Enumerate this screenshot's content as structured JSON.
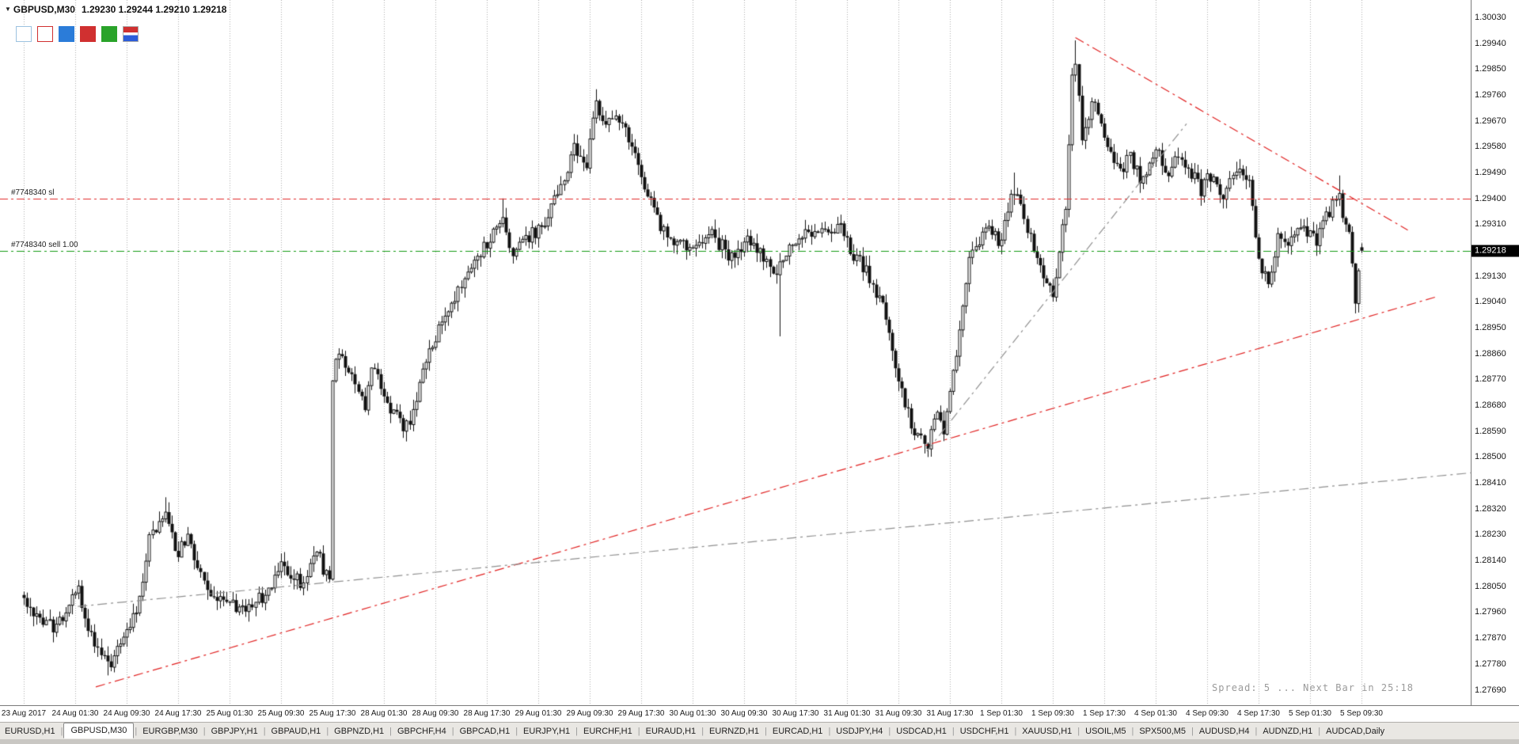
{
  "title": {
    "symbol_period": "GBPUSD,M30",
    "ohlc": "1.29230 1.29244 1.29210 1.29218"
  },
  "toolbar": {
    "swatches": [
      {
        "name": "empty-white",
        "fill": "#ffffff",
        "border": "#9cc2e0"
      },
      {
        "name": "red-outline",
        "fill": "#ffffff",
        "border": "#d03030"
      },
      {
        "name": "blue",
        "fill": "#2b7cd9",
        "border": "#2b7cd9"
      },
      {
        "name": "red",
        "fill": "#d03030",
        "border": "#d03030"
      },
      {
        "name": "green",
        "fill": "#2aa32a",
        "border": "#2aa32a"
      },
      {
        "name": "flag-striped",
        "fill": "stripes",
        "border": "#aaaaaa",
        "stripes": [
          "#d03030",
          "#ffffff",
          "#2b5cd9"
        ]
      }
    ]
  },
  "orders": [
    {
      "label": "#7748340 sl",
      "price": 1.294,
      "color": "#e02828"
    },
    {
      "label": "#7748340 sell 1.00",
      "price": 1.29218,
      "color": "#119a11"
    }
  ],
  "price_axis": {
    "labels": [
      "1.30030",
      "1.29940",
      "1.29850",
      "1.29760",
      "1.29670",
      "1.29580",
      "1.29490",
      "1.29400",
      "1.29310",
      "1.29220",
      "1.29130",
      "1.29040",
      "1.28950",
      "1.28860",
      "1.28770",
      "1.28680",
      "1.28590",
      "1.28500",
      "1.28410",
      "1.28320",
      "1.28230",
      "1.28140",
      "1.28050",
      "1.27960",
      "1.27870",
      "1.27780",
      "1.27690"
    ],
    "current": "1.29218",
    "current_price": 1.29218
  },
  "time_axis": [
    "23 Aug 2017",
    "24 Aug 01:30",
    "24 Aug 09:30",
    "24 Aug 17:30",
    "25 Aug 01:30",
    "25 Aug 09:30",
    "25 Aug 17:30",
    "28 Aug 01:30",
    "28 Aug 09:30",
    "28 Aug 17:30",
    "29 Aug 01:30",
    "29 Aug 09:30",
    "29 Aug 17:30",
    "30 Aug 01:30",
    "30 Aug 09:30",
    "30 Aug 17:30",
    "31 Aug 01:30",
    "31 Aug 09:30",
    "31 Aug 17:30",
    "1 Sep 01:30",
    "1 Sep 09:30",
    "1 Sep 17:30",
    "4 Sep 01:30",
    "4 Sep 09:30",
    "4 Sep 17:30",
    "5 Sep 01:30",
    "5 Sep 09:30"
  ],
  "status": "Spread: 5 ... Next Bar in 25:18",
  "tabs": {
    "separator": "|",
    "active_index": 1,
    "items": [
      "EURUSD,H1",
      "GBPUSD,M30",
      "EURGBP,M30",
      "GBPJPY,H1",
      "GBPAUD,H1",
      "GBPNZD,H1",
      "GBPCHF,H4",
      "GBPCAD,H1",
      "EURJPY,H1",
      "EURCHF,H1",
      "EURAUD,H1",
      "EURNZD,H1",
      "EURCAD,H1",
      "USDJPY,H4",
      "USDCAD,H1",
      "USDCHF,H1",
      "XAUUSD,H1",
      "USOIL,M5",
      "SPX500,M5",
      "AUDUSD,H4",
      "AUDNZD,H1",
      "AUDCAD,Daily"
    ]
  },
  "chart_data": {
    "type": "candlestick",
    "symbol": "GBPUSD",
    "timeframe": "M30",
    "ylim": [
      1.2764,
      1.3009
    ],
    "grid": "vertical-dotted",
    "bars_per_gridline": 16,
    "bar_count": 417,
    "colors": {
      "bull": "#ffffff",
      "bear": "#111111",
      "wick": "#111111",
      "grid": "#ababab",
      "trend_red": "#e02020",
      "trend_gray": "#8f8f8f"
    },
    "waypoints": [
      [
        0,
        1.2802
      ],
      [
        5,
        1.2793
      ],
      [
        10,
        1.2791
      ],
      [
        17,
        1.2803
      ],
      [
        22,
        1.2783
      ],
      [
        26,
        1.2777
      ],
      [
        31,
        1.2788
      ],
      [
        36,
        1.28
      ],
      [
        39,
        1.2822
      ],
      [
        44,
        1.2831
      ],
      [
        48,
        1.2816
      ],
      [
        51,
        1.2823
      ],
      [
        55,
        1.2808
      ],
      [
        58,
        1.28
      ],
      [
        63,
        1.2799
      ],
      [
        68,
        1.2796
      ],
      [
        74,
        1.2801
      ],
      [
        80,
        1.2812
      ],
      [
        86,
        1.2806
      ],
      [
        91,
        1.2817
      ],
      [
        95,
        1.2806
      ],
      [
        96,
        1.2876
      ],
      [
        98,
        1.2888
      ],
      [
        102,
        1.2879
      ],
      [
        106,
        1.2868
      ],
      [
        108,
        1.2883
      ],
      [
        112,
        1.2871
      ],
      [
        118,
        1.286
      ],
      [
        121,
        1.2865
      ],
      [
        126,
        1.2887
      ],
      [
        133,
        1.2904
      ],
      [
        139,
        1.2915
      ],
      [
        145,
        1.2927
      ],
      [
        149,
        1.2933
      ],
      [
        152,
        1.2921
      ],
      [
        157,
        1.2927
      ],
      [
        162,
        1.293
      ],
      [
        166,
        1.2943
      ],
      [
        171,
        1.2957
      ],
      [
        175,
        1.2951
      ],
      [
        178,
        1.2973
      ],
      [
        181,
        1.2967
      ],
      [
        184,
        1.2971
      ],
      [
        189,
        1.2959
      ],
      [
        194,
        1.2941
      ],
      [
        198,
        1.2929
      ],
      [
        203,
        1.2923
      ],
      [
        208,
        1.2925
      ],
      [
        214,
        1.2927
      ],
      [
        221,
        1.2918
      ],
      [
        225,
        1.2927
      ],
      [
        229,
        1.2921
      ],
      [
        234,
        1.2913
      ],
      [
        238,
        1.2924
      ],
      [
        243,
        1.2929
      ],
      [
        248,
        1.2927
      ],
      [
        254,
        1.293
      ],
      [
        258,
        1.292
      ],
      [
        262,
        1.2915
      ],
      [
        267,
        1.2903
      ],
      [
        272,
        1.2878
      ],
      [
        276,
        1.286
      ],
      [
        281,
        1.2852
      ],
      [
        284,
        1.2868
      ],
      [
        286,
        1.2859
      ],
      [
        290,
        1.2884
      ],
      [
        294,
        1.2918
      ],
      [
        299,
        1.293
      ],
      [
        304,
        1.2924
      ],
      [
        307,
        1.2943
      ],
      [
        310,
        1.2938
      ],
      [
        315,
        1.2918
      ],
      [
        320,
        1.2906
      ],
      [
        324,
        1.2938
      ],
      [
        326,
        1.2984
      ],
      [
        327,
        1.2989
      ],
      [
        329,
        1.2961
      ],
      [
        333,
        1.2975
      ],
      [
        337,
        1.2958
      ],
      [
        341,
        1.2948
      ],
      [
        344,
        1.2956
      ],
      [
        347,
        1.2946
      ],
      [
        352,
        1.2956
      ],
      [
        356,
        1.295
      ],
      [
        360,
        1.2955
      ],
      [
        366,
        1.2943
      ],
      [
        368,
        1.2949
      ],
      [
        373,
        1.294
      ],
      [
        378,
        1.2951
      ],
      [
        381,
        1.2946
      ],
      [
        384,
        1.2918
      ],
      [
        387,
        1.291
      ],
      [
        390,
        1.2926
      ],
      [
        392,
        1.2923
      ],
      [
        397,
        1.2929
      ],
      [
        402,
        1.2926
      ],
      [
        405,
        1.2934
      ],
      [
        409,
        1.294
      ],
      [
        412,
        1.2927
      ],
      [
        414,
        1.2904
      ],
      [
        416,
        1.29218
      ]
    ],
    "overrides": {
      "26": {
        "low": 1.2774
      },
      "44": {
        "high": 1.2836
      },
      "149": {
        "high": 1.294
      },
      "178": {
        "high": 1.2978
      },
      "235": {
        "low": 1.2892
      },
      "281": {
        "low": 1.285
      },
      "308": {
        "high": 1.2949
      },
      "327": {
        "high": 1.2995
      },
      "409": {
        "high": 1.2948
      },
      "414": {
        "low": 1.29
      },
      "416": {
        "open": 1.2923,
        "high": 1.29244,
        "low": 1.2921,
        "close": 1.29218
      }
    },
    "trendlines": [
      {
        "g1": 1.4,
        "p1": 1.277,
        "g2": 27.5,
        "p2": 1.2906,
        "color": "#e02020"
      },
      {
        "g1": 20.44,
        "p1": 1.2996,
        "g2": 26.9,
        "p2": 1.2929,
        "color": "#e02020"
      },
      {
        "g1": 1.05,
        "p1": 1.2798,
        "g2": 29.0,
        "p2": 1.2846,
        "color": "#8f8f8f"
      },
      {
        "g1": 17.55,
        "p1": 1.2852,
        "g2": 22.6,
        "p2": 1.2966,
        "color": "#8f8f8f"
      }
    ]
  }
}
